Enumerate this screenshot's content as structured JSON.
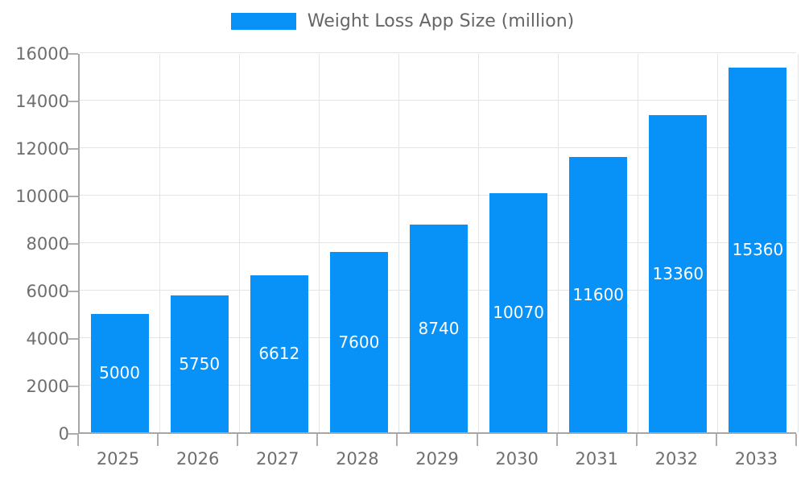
{
  "legend": {
    "label": "Weight Loss App Size (million)",
    "swatch_color": "#0892f8"
  },
  "chart_data": {
    "type": "bar",
    "title": "Weight Loss App Size (million)",
    "categories": [
      "2025",
      "2026",
      "2027",
      "2028",
      "2029",
      "2030",
      "2031",
      "2032",
      "2033"
    ],
    "series": [
      {
        "name": "Weight Loss App Size (million)",
        "values": [
          5000,
          5750,
          6612,
          7600,
          8740,
          10070,
          11600,
          13360,
          15360
        ]
      }
    ],
    "bar_labels": [
      "5000",
      "5750",
      "6612",
      "7600",
      "8740",
      "10070",
      "11600",
      "13360",
      "15360"
    ],
    "xlabel": "",
    "ylabel": "",
    "ylim": [
      0,
      16000
    ],
    "ytick_step": 2000,
    "yticks": [
      "0",
      "2000",
      "4000",
      "6000",
      "8000",
      "10000",
      "12000",
      "14000",
      "16000"
    ],
    "grid": true,
    "legend_position": "top",
    "colors": {
      "bar": "#0892f8",
      "bar_label_text": "#ffffff",
      "gridline": "#e4e4e4",
      "axis_line": "#a6a6a6",
      "tick_mark": "#adadad",
      "axis_text": "#6e6e6e",
      "legend_text": "#666666"
    }
  }
}
